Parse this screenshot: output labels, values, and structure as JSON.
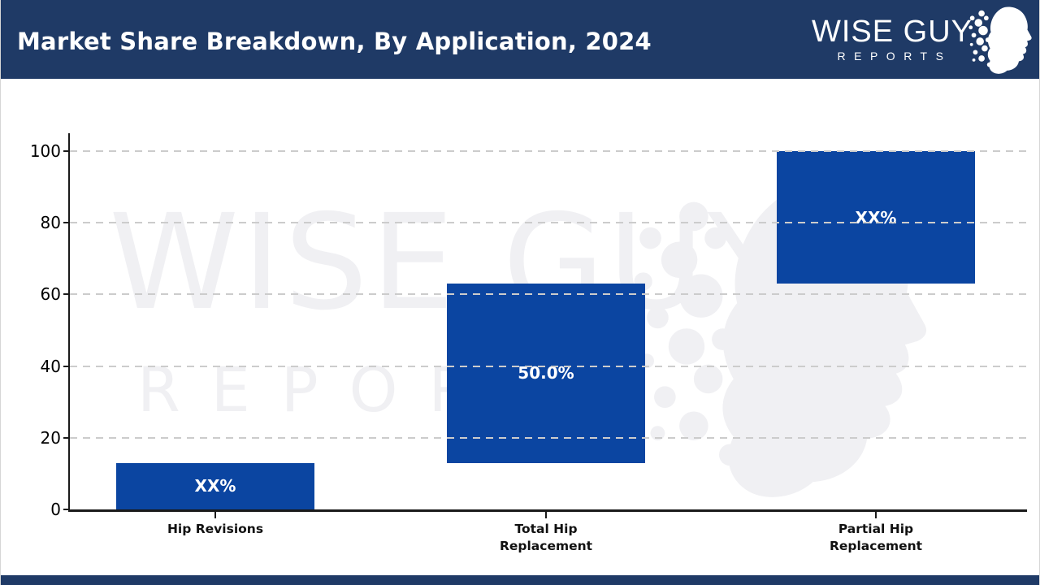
{
  "header": {
    "title": "Market Share Breakdown, By Application, 2024",
    "logo": {
      "line1": "WISE GUY",
      "line2": "REPORTS"
    }
  },
  "watermark": {
    "line1": "WISE GUY",
    "line2": "REPORTS"
  },
  "colors": {
    "header_bg": "#1f3a66",
    "bar": "#0b45a1",
    "bar_label": "#ffffff",
    "grid": "#cccccc",
    "axis": "#1a1a1a",
    "watermark": "#f0f0f3"
  },
  "chart_data": {
    "type": "bar",
    "subtype": "floating-waterfall",
    "title": "Market Share Breakdown, By Application, 2024",
    "categories": [
      "Hip Revisions",
      "Total Hip Replacement",
      "Partial Hip Replacement"
    ],
    "categories_wrapped": [
      [
        "Hip Revisions"
      ],
      [
        "Total Hip",
        "Replacement"
      ],
      [
        "Partial Hip",
        "Replacement"
      ]
    ],
    "series": [
      {
        "name": "Market share (%)",
        "segments": [
          {
            "category": "Hip Revisions",
            "start": 0,
            "end": 13,
            "label": "XX%"
          },
          {
            "category": "Total Hip Replacement",
            "start": 13,
            "end": 63,
            "label": "50.0%"
          },
          {
            "category": "Partial Hip Replacement",
            "start": 63,
            "end": 100,
            "label": "XX%"
          }
        ]
      }
    ],
    "yticks": [
      0,
      20,
      40,
      60,
      80,
      100
    ],
    "ylim": [
      0,
      105
    ],
    "xlabel": "",
    "ylabel": "",
    "grid": "horizontal-dashed",
    "legend": "none"
  }
}
